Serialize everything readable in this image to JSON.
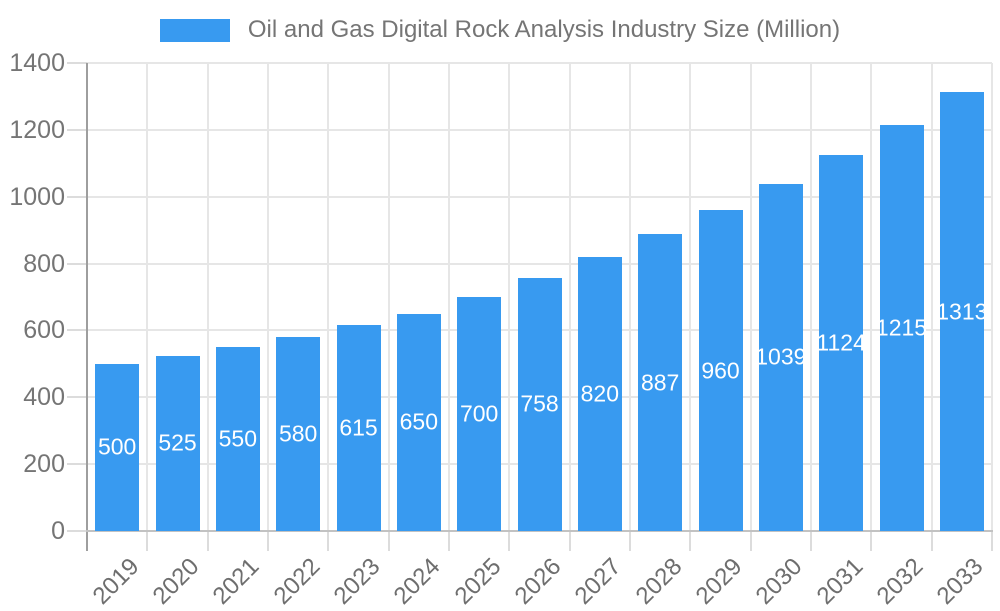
{
  "legend": {
    "label": "Oil and Gas Digital Rock Analysis Industry Size (Million)"
  },
  "colors": {
    "bar": "#389AF0",
    "axis_text": "#757575",
    "x_text": "#6e6e6e",
    "grid": "#e6e6e6",
    "tick": "#dcdcdc",
    "y_axis_line": "#9e9e9e",
    "x_axis_line": "#c2c2c2",
    "value_label": "#ffffff",
    "background": "#ffffff"
  },
  "chart_data": {
    "type": "bar",
    "title": "Oil and Gas Digital Rock Analysis Industry Size (Million)",
    "categories": [
      "2019",
      "2020",
      "2021",
      "2022",
      "2023",
      "2024",
      "2025",
      "2026",
      "2027",
      "2028",
      "2029",
      "2030",
      "2031",
      "2032",
      "2033"
    ],
    "values": [
      500,
      525,
      550,
      580,
      615,
      650,
      700,
      758,
      820,
      887,
      960,
      1039,
      1124,
      1215,
      1313
    ],
    "xlabel": "",
    "ylabel": "",
    "ylim": [
      0,
      1400
    ],
    "ytick_step": 200,
    "yticks": [
      0,
      200,
      400,
      600,
      800,
      1000,
      1200,
      1400
    ],
    "grid": true,
    "legend_position": "top",
    "value_label_position": "inside-center",
    "x_tick_rotation_deg": -45
  }
}
